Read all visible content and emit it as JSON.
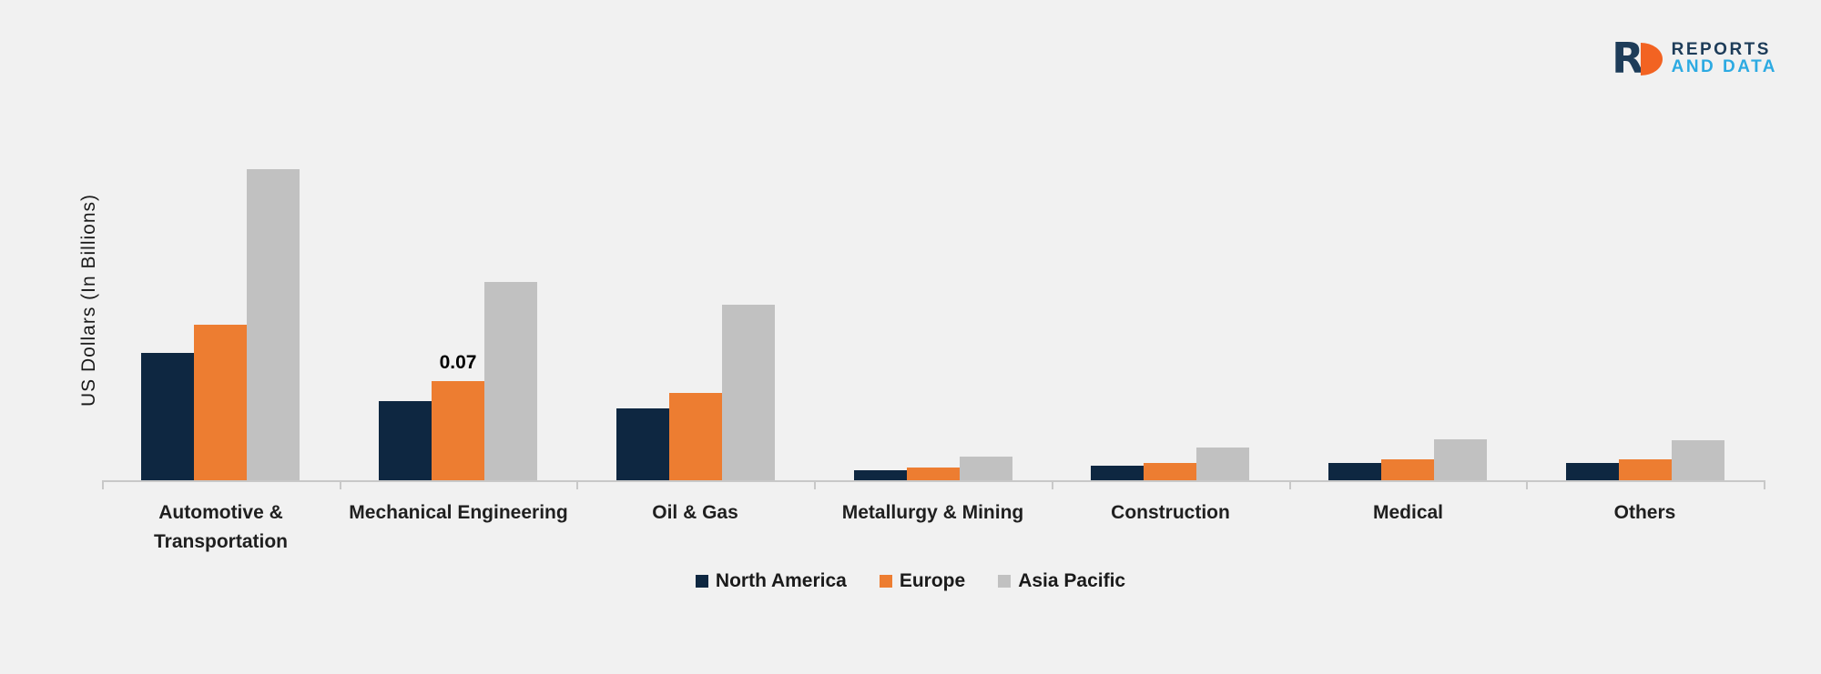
{
  "page": {
    "background": "#f1f1f1"
  },
  "logo": {
    "mark_r": "R",
    "mark_d_icon": "d-half-circle",
    "line1": "REPORTS",
    "line2": "AND DATA",
    "colors": {
      "mark_r": "#1d3c59",
      "mark_d": "#f26322",
      "line1": "#1d3c59",
      "line2": "#2caae2"
    }
  },
  "chart_data": {
    "type": "bar",
    "title": "",
    "xlabel": "",
    "ylabel": "US Dollars (In Billions)",
    "ylim": [
      0,
      0.25
    ],
    "grid": false,
    "legend_position": "bottom",
    "categories": [
      "Automotive & Transportation",
      "Mechanical Engineering",
      "Oil & Gas",
      "Metallurgy & Mining",
      "Construction",
      "Medical",
      "Others"
    ],
    "series": [
      {
        "name": "North America",
        "color": "#0e2741",
        "values": [
          0.09,
          0.056,
          0.051,
          0.007,
          0.01,
          0.012,
          0.012
        ]
      },
      {
        "name": "Europe",
        "color": "#ed7d31",
        "values": [
          0.11,
          0.07,
          0.062,
          0.009,
          0.012,
          0.015,
          0.015
        ]
      },
      {
        "name": "Asia Pacific",
        "color": "#c1c1c1",
        "values": [
          0.22,
          0.14,
          0.124,
          0.017,
          0.023,
          0.029,
          0.028
        ]
      }
    ],
    "data_labels": [
      {
        "category_index": 1,
        "series_index": 1,
        "text": "0.07"
      }
    ],
    "axis_color": "#c8c8c8"
  }
}
